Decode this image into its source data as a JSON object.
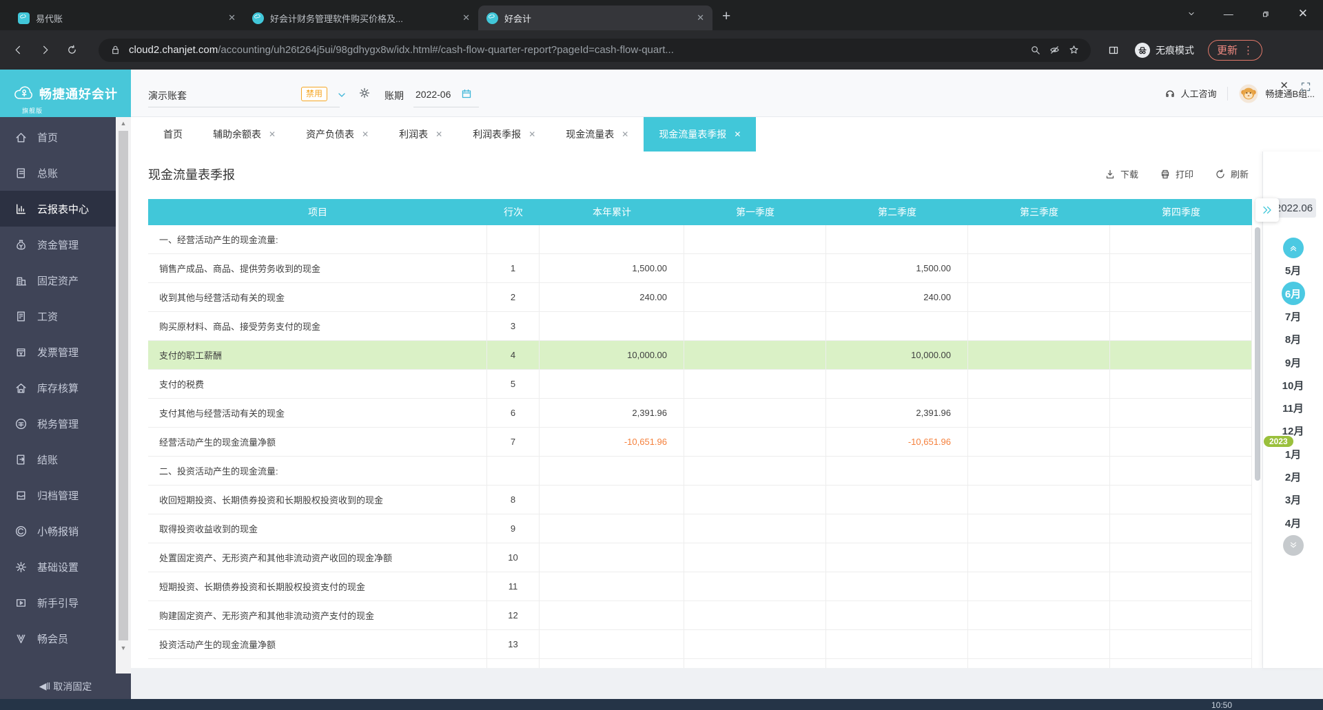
{
  "browser": {
    "tabs": [
      {
        "title": "易代账",
        "icon": "yidaizhang-app-icon",
        "active": false
      },
      {
        "title": "好会计财务管理软件购买价格及...",
        "icon": "haokuaiji-app-icon",
        "active": false
      },
      {
        "title": "好会计",
        "icon": "haokuaiji-app-icon",
        "active": true
      }
    ],
    "new_tab_label": "+",
    "url_host": "cloud2.chanjet.com",
    "url_path": "/accounting/uh26t264j5ui/98gdhygx8w/idx.html#/cash-flow-quarter-report?pageId=cash-flow-quart...",
    "incognito_label": "无痕模式",
    "update_label": "更新"
  },
  "app_header": {
    "logo_text": "畅捷通好会计",
    "logo_badge": "旗舰版",
    "account_name": "演示账套",
    "disabled_badge": "禁用",
    "period_label": "账期",
    "period_value": "2022-06",
    "support_label": "人工咨询",
    "user_name": "畅捷通B组..."
  },
  "sidebar": {
    "items": [
      {
        "id": "home",
        "label": "首页",
        "icon": "home-icon",
        "active": false
      },
      {
        "id": "general-ledger",
        "label": "总账",
        "icon": "ledger-icon",
        "active": false
      },
      {
        "id": "cloud-reports",
        "label": "云报表中心",
        "icon": "report-chart-icon",
        "active": true
      },
      {
        "id": "funds",
        "label": "资金管理",
        "icon": "money-bag-icon",
        "active": false
      },
      {
        "id": "fixed-assets",
        "label": "固定资产",
        "icon": "fixed-assets-icon",
        "active": false
      },
      {
        "id": "payroll",
        "label": "工资",
        "icon": "payroll-icon",
        "active": false
      },
      {
        "id": "invoices",
        "label": "发票管理",
        "icon": "invoice-icon",
        "active": false
      },
      {
        "id": "inventory",
        "label": "库存核算",
        "icon": "inventory-icon",
        "active": false
      },
      {
        "id": "tax",
        "label": "税务管理",
        "icon": "tax-icon",
        "active": false
      },
      {
        "id": "closing",
        "label": "结账",
        "icon": "closing-icon",
        "active": false
      },
      {
        "id": "archive",
        "label": "归档管理",
        "icon": "archive-icon",
        "active": false
      },
      {
        "id": "reimburse",
        "label": "小畅报销",
        "icon": "reimburse-icon",
        "active": false
      },
      {
        "id": "settings",
        "label": "基础设置",
        "icon": "settings-icon",
        "active": false
      },
      {
        "id": "guide",
        "label": "新手引导",
        "icon": "guide-icon",
        "active": false
      },
      {
        "id": "member",
        "label": "畅会员",
        "icon": "member-icon",
        "active": false
      }
    ],
    "unpin_label": "取消固定"
  },
  "report_tabs": [
    {
      "label": "首页",
      "closable": false,
      "active": false
    },
    {
      "label": "辅助余额表",
      "closable": true,
      "active": false
    },
    {
      "label": "资产负债表",
      "closable": true,
      "active": false
    },
    {
      "label": "利润表",
      "closable": true,
      "active": false
    },
    {
      "label": "利润表季报",
      "closable": true,
      "active": false
    },
    {
      "label": "现金流量表",
      "closable": true,
      "active": false
    },
    {
      "label": "现金流量表季报",
      "closable": true,
      "active": true
    }
  ],
  "report": {
    "title": "现金流量表季报",
    "toolbar": [
      {
        "label": "下载",
        "icon": "download-icon"
      },
      {
        "label": "打印",
        "icon": "print-icon"
      },
      {
        "label": "刷新",
        "icon": "refresh-icon"
      }
    ]
  },
  "table": {
    "columns": [
      "项目",
      "行次",
      "本年累计",
      "第一季度",
      "第二季度",
      "第三季度",
      "第四季度"
    ],
    "rows": [
      {
        "cells": [
          "一、经营活动产生的现金流量:",
          "",
          "",
          "",
          "",
          "",
          ""
        ],
        "section": true
      },
      {
        "cells": [
          "销售产成品、商品、提供劳务收到的现金",
          "1",
          "1,500.00",
          "",
          "1,500.00",
          "",
          ""
        ]
      },
      {
        "cells": [
          "收到其他与经营活动有关的现金",
          "2",
          "240.00",
          "",
          "240.00",
          "",
          ""
        ]
      },
      {
        "cells": [
          "购买原材料、商品、接受劳务支付的现金",
          "3",
          "",
          "",
          "",
          "",
          ""
        ]
      },
      {
        "cells": [
          "支付的职工薪酬",
          "4",
          "10,000.00",
          "",
          "10,000.00",
          "",
          ""
        ],
        "highlight": true
      },
      {
        "cells": [
          "支付的税费",
          "5",
          "",
          "",
          "",
          "",
          ""
        ]
      },
      {
        "cells": [
          "支付其他与经营活动有关的现金",
          "6",
          "2,391.96",
          "",
          "2,391.96",
          "",
          ""
        ]
      },
      {
        "cells": [
          "经营活动产生的现金流量净额",
          "7",
          "-10,651.96",
          "",
          "-10,651.96",
          "",
          ""
        ]
      },
      {
        "cells": [
          "二、投资活动产生的现金流量:",
          "",
          "",
          "",
          "",
          "",
          ""
        ],
        "section": true
      },
      {
        "cells": [
          "收回短期投资、长期债券投资和长期股权投资收到的现金",
          "8",
          "",
          "",
          "",
          "",
          ""
        ]
      },
      {
        "cells": [
          "取得投资收益收到的现金",
          "9",
          "",
          "",
          "",
          "",
          ""
        ]
      },
      {
        "cells": [
          "处置固定资产、无形资产和其他非流动资产收回的现金净额",
          "10",
          "",
          "",
          "",
          "",
          ""
        ]
      },
      {
        "cells": [
          "短期投资、长期债券投资和长期股权投资支付的现金",
          "11",
          "",
          "",
          "",
          "",
          ""
        ]
      },
      {
        "cells": [
          "购建固定资产、无形资产和其他非流动资产支付的现金",
          "12",
          "",
          "",
          "",
          "",
          ""
        ]
      },
      {
        "cells": [
          "投资活动产生的现金流量净额",
          "13",
          "",
          "",
          "",
          "",
          ""
        ]
      },
      {
        "cells": [
          "",
          "",
          "",
          "",
          "",
          "",
          ""
        ]
      }
    ]
  },
  "month_panel": {
    "current_period": "2022.06",
    "year_badge": "2023",
    "months": [
      {
        "label": "5月",
        "active": false
      },
      {
        "label": "6月",
        "active": true
      },
      {
        "label": "7月",
        "active": false
      },
      {
        "label": "8月",
        "active": false
      },
      {
        "label": "9月",
        "active": false
      },
      {
        "label": "10月",
        "active": false
      },
      {
        "label": "11月",
        "active": false
      },
      {
        "label": "12月",
        "active": false
      },
      {
        "label": "1月",
        "active": false
      },
      {
        "label": "2月",
        "active": false
      },
      {
        "label": "3月",
        "active": false
      },
      {
        "label": "4月",
        "active": false
      }
    ]
  },
  "taskbar": {
    "clock": "10:50"
  },
  "colors": {
    "accent": "#41c7d9",
    "highlight_row": "#daf1c6",
    "negative": "#f5803c",
    "warning_badge": "#f5a623",
    "year_badge_green": "#9ac03c",
    "sidebar_bg": "#3f4457"
  }
}
